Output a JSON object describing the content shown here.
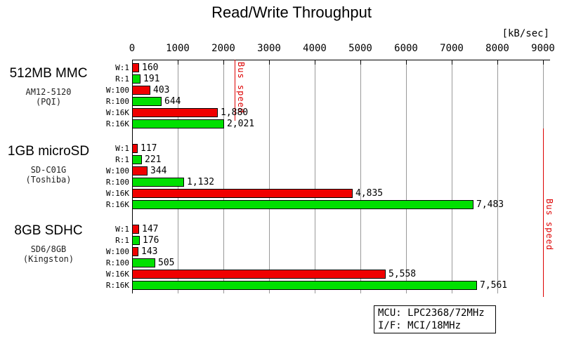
{
  "page": {
    "title": "Read/Write Throughput",
    "unit_label": "[kB/sec]"
  },
  "info_box": {
    "line1": "MCU: LPC2368/72MHz",
    "line2": "I/F: MCI/18MHz"
  },
  "chart_data": {
    "type": "bar",
    "orientation": "horizontal",
    "title": "Read/Write Throughput",
    "xlabel": "[kB/sec]",
    "xlim": [
      0,
      9000
    ],
    "x_ticks": [
      0,
      1000,
      2000,
      3000,
      4000,
      5000,
      6000,
      7000,
      8000,
      9000
    ],
    "grid": true,
    "colors": {
      "write": "#f00000",
      "read": "#00e000",
      "bus_speed": "#dd0000",
      "grid": "#999999"
    },
    "bar_labels": [
      "W:1",
      "R:1",
      "W:100",
      "R:100",
      "W:16K",
      "R:16K"
    ],
    "groups": [
      {
        "name": "512MB MMC",
        "model": "AM12-5120",
        "maker": "(PQI)",
        "series": [
          {
            "label": "W:1",
            "value": 160,
            "type": "write"
          },
          {
            "label": "R:1",
            "value": 191,
            "type": "read"
          },
          {
            "label": "W:100",
            "value": 403,
            "type": "write"
          },
          {
            "label": "R:100",
            "value": 644,
            "type": "read"
          },
          {
            "label": "W:16K",
            "value": 1880,
            "type": "write"
          },
          {
            "label": "R:16K",
            "value": 2021,
            "type": "read"
          }
        ]
      },
      {
        "name": "1GB microSD",
        "model": "SD-C01G",
        "maker": "(Toshiba)",
        "series": [
          {
            "label": "W:1",
            "value": 117,
            "type": "write"
          },
          {
            "label": "R:1",
            "value": 221,
            "type": "read"
          },
          {
            "label": "W:100",
            "value": 344,
            "type": "write"
          },
          {
            "label": "R:100",
            "value": 1132,
            "type": "read"
          },
          {
            "label": "W:16K",
            "value": 4835,
            "type": "write"
          },
          {
            "label": "R:16K",
            "value": 7483,
            "type": "read"
          }
        ]
      },
      {
        "name": "8GB SDHC",
        "model": "SD6/8GB",
        "maker": "(Kingston)",
        "series": [
          {
            "label": "W:1",
            "value": 147,
            "type": "write"
          },
          {
            "label": "R:1",
            "value": 176,
            "type": "read"
          },
          {
            "label": "W:100",
            "value": 143,
            "type": "write"
          },
          {
            "label": "R:100",
            "value": 505,
            "type": "read"
          },
          {
            "label": "W:16K",
            "value": 5558,
            "type": "write"
          },
          {
            "label": "R:16K",
            "value": 7561,
            "type": "read"
          }
        ]
      }
    ],
    "bus_speed_lines": [
      {
        "label": "Bus speed",
        "value": 2250
      },
      {
        "label": "Bus speed",
        "value": 9000
      }
    ]
  }
}
